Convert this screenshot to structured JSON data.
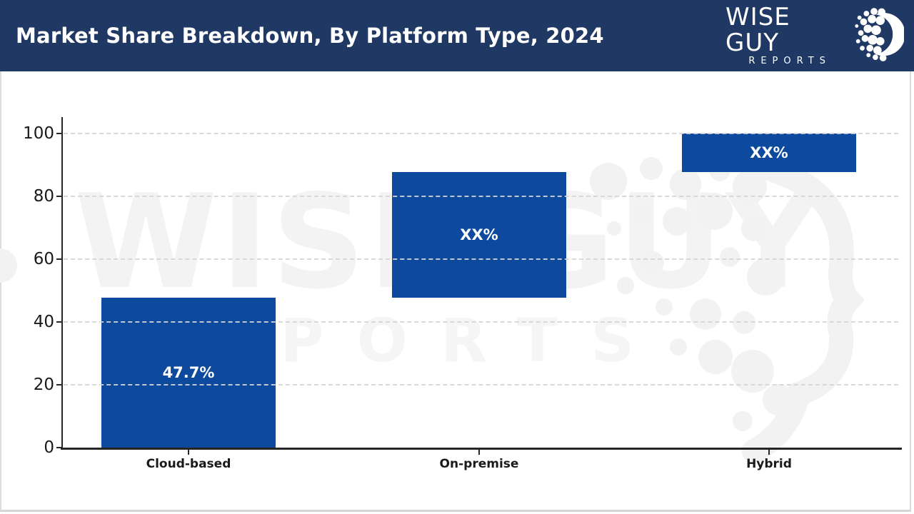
{
  "header": {
    "title": "Market Share Breakdown, By Platform Type, 2024",
    "bg_color": "#1F3864",
    "logo": {
      "primary": "WISE GUY",
      "secondary": "REPORTS"
    }
  },
  "watermark": {
    "primary": "WISE GUY",
    "secondary": "REPORTS"
  },
  "chart_data": {
    "type": "bar",
    "variant": "floating-waterfall",
    "title": "Market Share Breakdown, By Platform Type, 2024",
    "categories": [
      "Cloud-based",
      "On-premise",
      "Hybrid"
    ],
    "segments": [
      {
        "category": "Cloud-based",
        "start": 0,
        "end": 47.7,
        "label": "47.7%"
      },
      {
        "category": "On-premise",
        "start": 47.7,
        "end": 87.7,
        "label": "XX%"
      },
      {
        "category": "Hybrid",
        "start": 87.7,
        "end": 100,
        "label": "XX%"
      }
    ],
    "ylim": [
      0,
      100
    ],
    "yticks": [
      0,
      20,
      40,
      60,
      80,
      100
    ],
    "xlabel": "",
    "ylabel": "",
    "grid": "horizontal-dashed",
    "legend": "none",
    "bar_color": "#0D4A9E",
    "bar_label_color": "#FFFFFF",
    "axis_color": "#262626",
    "gridline_color": "#D5D5D5",
    "tick_label_color": "#1A1A1A"
  }
}
